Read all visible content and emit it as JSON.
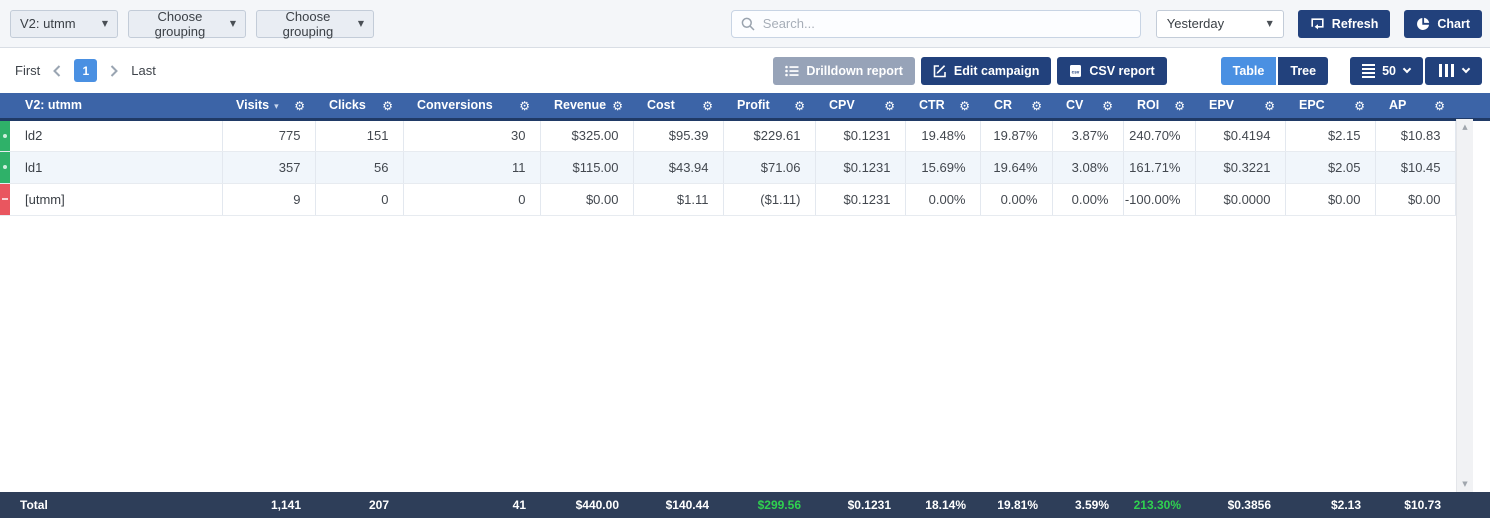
{
  "toolbar": {
    "variable_select": "V2: utmm",
    "grouping1": "Choose grouping",
    "grouping2": "Choose grouping",
    "search_placeholder": "Search...",
    "date_range": "Yesterday",
    "refresh_label": "Refresh",
    "chart_label": "Chart"
  },
  "pagination": {
    "first": "First",
    "page": "1",
    "last": "Last"
  },
  "actions": {
    "drilldown": "Drilldown report",
    "edit_campaign": "Edit campaign",
    "csv": "CSV report",
    "table": "Table",
    "tree": "Tree",
    "page_size": "50"
  },
  "table": {
    "name_header": "V2: utmm",
    "columns": [
      "Visits",
      "Clicks",
      "Conversions",
      "Revenue",
      "Cost",
      "Profit",
      "CPV",
      "CTR",
      "CR",
      "CV",
      "ROI",
      "EPV",
      "EPC",
      "AP"
    ],
    "sorted_column": "Visits",
    "rows": [
      {
        "name": "ld2",
        "indicator": "plus",
        "values": [
          "775",
          "151",
          "30",
          "$325.00",
          "$95.39",
          "$229.61",
          "$0.1231",
          "19.48%",
          "19.87%",
          "3.87%",
          "240.70%",
          "$0.4194",
          "$2.15",
          "$10.83"
        ],
        "cell_colors": {
          "5": "green",
          "10": "green"
        }
      },
      {
        "name": "ld1",
        "indicator": "plus",
        "values": [
          "357",
          "56",
          "11",
          "$115.00",
          "$43.94",
          "$71.06",
          "$0.1231",
          "15.69%",
          "19.64%",
          "3.08%",
          "161.71%",
          "$0.3221",
          "$2.05",
          "$10.45"
        ],
        "cell_colors": {
          "5": "green",
          "10": "green"
        }
      },
      {
        "name": "[utmm]",
        "indicator": "minus",
        "values": [
          "9",
          "0",
          "0",
          "$0.00",
          "$1.11",
          "($1.11)",
          "$0.1231",
          "0.00%",
          "0.00%",
          "0.00%",
          "-100.00%",
          "$0.0000",
          "$0.00",
          "$0.00"
        ],
        "cell_colors": {
          "5": "red",
          "10": "red"
        }
      }
    ],
    "total": {
      "label": "Total",
      "values": [
        "1,141",
        "207",
        "41",
        "$440.00",
        "$140.44",
        "$299.56",
        "$0.1231",
        "18.14%",
        "19.81%",
        "3.59%",
        "213.30%",
        "$0.3856",
        "$2.13",
        "$10.73"
      ],
      "cell_colors": {
        "5": "green",
        "10": "green"
      }
    }
  },
  "icons": {
    "search": "magnifier",
    "refresh": "reload-frame",
    "chart": "pie-chart",
    "drilldown": "bullet-list",
    "edit_campaign": "pencil-square",
    "csv": "csv-file",
    "page_size": "hamburger",
    "columns": "vertical-bars",
    "column_settings": "⚙",
    "sort_desc": "▾",
    "dropdown_caret": "▼"
  },
  "colors": {
    "header_blue": "#3c64a7",
    "header_border": "#203a66",
    "navy_button": "#22417c",
    "active_blue": "#4a90e2",
    "disabled_button": "#97a3b8",
    "total_bar": "#2e3e59",
    "positive_green": "#27a55f",
    "total_green": "#2fd14f",
    "negative_red": "#ef5767",
    "row_stripe": "#f1f6fb",
    "indicator_green": "#2fb169",
    "indicator_red": "#e9565f"
  }
}
